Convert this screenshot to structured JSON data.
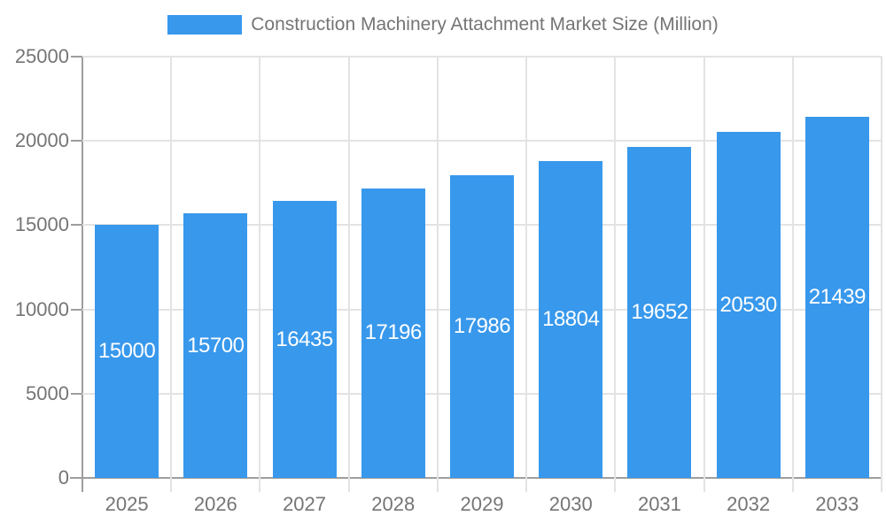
{
  "legend": {
    "label": "Construction Machinery Attachment Market Size (Million)"
  },
  "chart_data": {
    "type": "bar",
    "title": "Construction Machinery Attachment Market Size (Million)",
    "categories": [
      "2025",
      "2026",
      "2027",
      "2028",
      "2029",
      "2030",
      "2031",
      "2032",
      "2033"
    ],
    "values": [
      15000,
      15700,
      16435,
      17196,
      17986,
      18804,
      19652,
      20530,
      21439
    ],
    "xlabel": "",
    "ylabel": "",
    "ylim": [
      0,
      25000
    ],
    "yticks": [
      0,
      5000,
      10000,
      15000,
      20000,
      25000
    ],
    "grid": true,
    "legend_position": "top",
    "colors": {
      "bar": "#3898ec",
      "bar_value_label": "#ffffff",
      "axis_text": "#757575",
      "axis_line": "#9e9e9e",
      "gridline": "#e3e3e3"
    }
  }
}
